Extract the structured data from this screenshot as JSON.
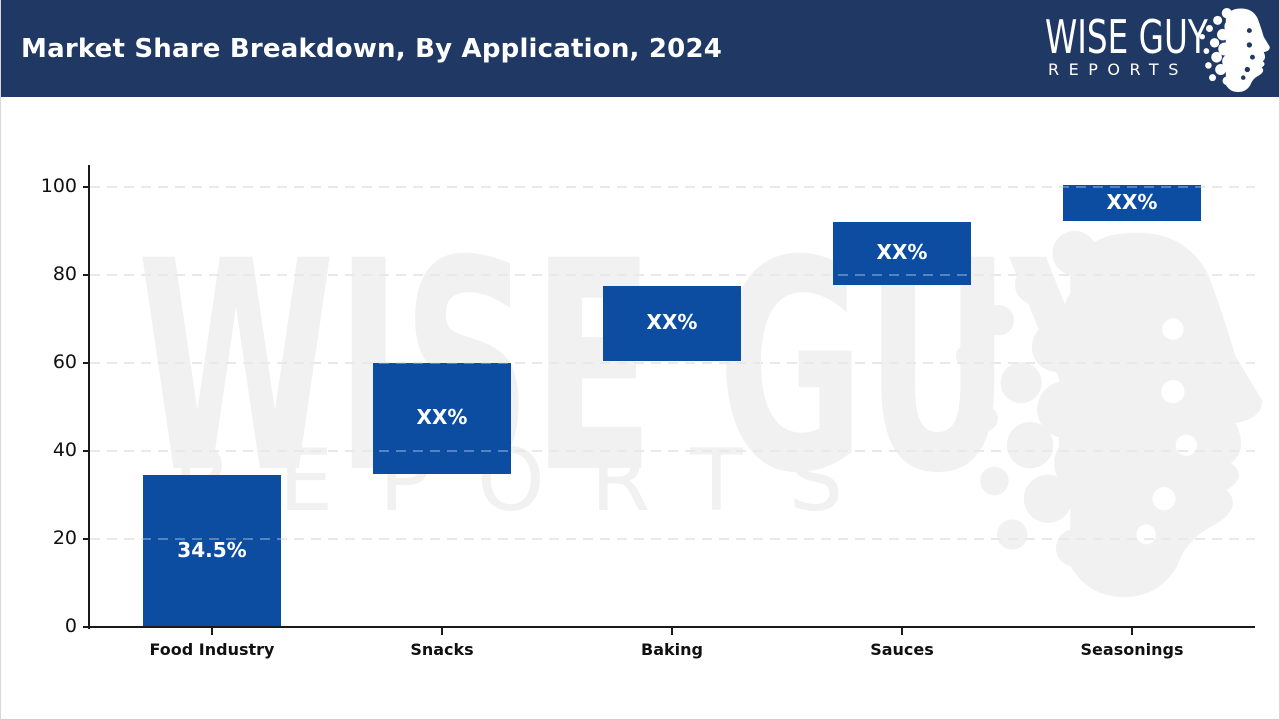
{
  "header": {
    "title": "Market Share Breakdown, By Application, 2024",
    "background_color": "#203864"
  },
  "logo": {
    "wordmark": "WISE GUY",
    "subtext": "REPORTS",
    "head_icon": "dotted-head-profile"
  },
  "watermark": {
    "line1": "WISE GUY",
    "line2": "REPORTS",
    "head_icon": "dotted-head-profile",
    "color": "#f1f1f1"
  },
  "chart_data": {
    "type": "bar",
    "subtype": "floating-waterfall",
    "title": "Market Share Breakdown, By Application, 2024",
    "categories": [
      "Food Industry",
      "Snacks",
      "Baking",
      "Sauces",
      "Seasonings"
    ],
    "segments": [
      {
        "category": "Food Industry",
        "start": 0,
        "end": 34.5,
        "label": "34.5%"
      },
      {
        "category": "Snacks",
        "start": 34.8,
        "end": 60.1,
        "label": "XX%"
      },
      {
        "category": "Baking",
        "start": 60.5,
        "end": 77.6,
        "label": "XX%"
      },
      {
        "category": "Sauces",
        "start": 77.8,
        "end": 92.0,
        "label": "XX%"
      },
      {
        "category": "Seasonings",
        "start": 92.2,
        "end": 100.4,
        "label": "XX%"
      }
    ],
    "yticks": [
      0,
      20,
      40,
      60,
      80,
      100
    ],
    "ylim": [
      0,
      105
    ],
    "xlabel": "",
    "ylabel": "",
    "grid": true,
    "grid_style": "dashed",
    "legend": "none",
    "bar_color": "#0c4da2",
    "value_label_color": "#ffffff"
  }
}
